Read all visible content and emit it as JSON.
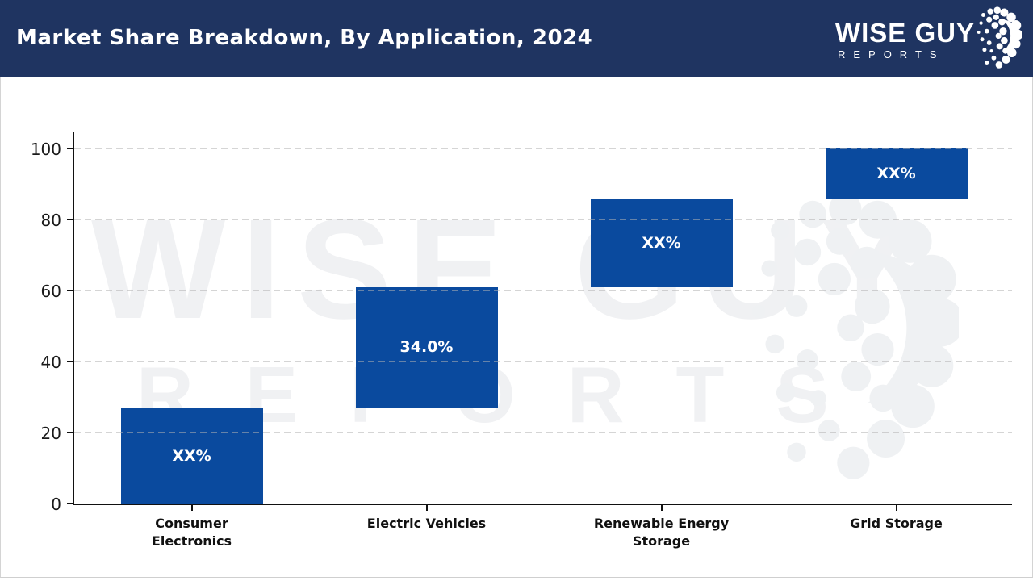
{
  "header": {
    "title": "Market Share Breakdown, By Application, 2024",
    "bg_color": "#1f3461",
    "logo": {
      "line1": "WISE GUY",
      "line2": "REPORTS"
    }
  },
  "watermark": {
    "line1": "WISE GUY",
    "line2": "REPORTS"
  },
  "chart_data": {
    "type": "bar",
    "subtype": "floating-waterfall",
    "title": "Market Share Breakdown, By Application, 2024",
    "categories": [
      "Consumer Electronics",
      "Electric Vehicles",
      "Renewable Energy Storage",
      "Grid Storage"
    ],
    "bars": [
      {
        "category": "Consumer Electronics",
        "label_lines": [
          "Consumer",
          "Electronics"
        ],
        "start": 0,
        "end": 27,
        "label": "XX%"
      },
      {
        "category": "Electric Vehicles",
        "label_lines": [
          "Electric Vehicles"
        ],
        "start": 27,
        "end": 61,
        "label": "34.0%"
      },
      {
        "category": "Renewable Energy Storage",
        "label_lines": [
          "Renewable Energy",
          "Storage"
        ],
        "start": 61,
        "end": 86,
        "label": "XX%"
      },
      {
        "category": "Grid Storage",
        "label_lines": [
          "Grid Storage"
        ],
        "start": 86,
        "end": 100,
        "label": "XX%"
      }
    ],
    "xlabel": "",
    "ylabel": "",
    "yticks": [
      0,
      20,
      40,
      60,
      80,
      100
    ],
    "ylim": [
      0,
      105
    ],
    "grid": {
      "axis": "y",
      "style": "dashed",
      "color": "#c8c8c8",
      "over_bars": true
    },
    "bar_color": "#0a4a9e",
    "bar_label_color": "#ffffff",
    "axis_color": "#111111",
    "legend": "none"
  }
}
